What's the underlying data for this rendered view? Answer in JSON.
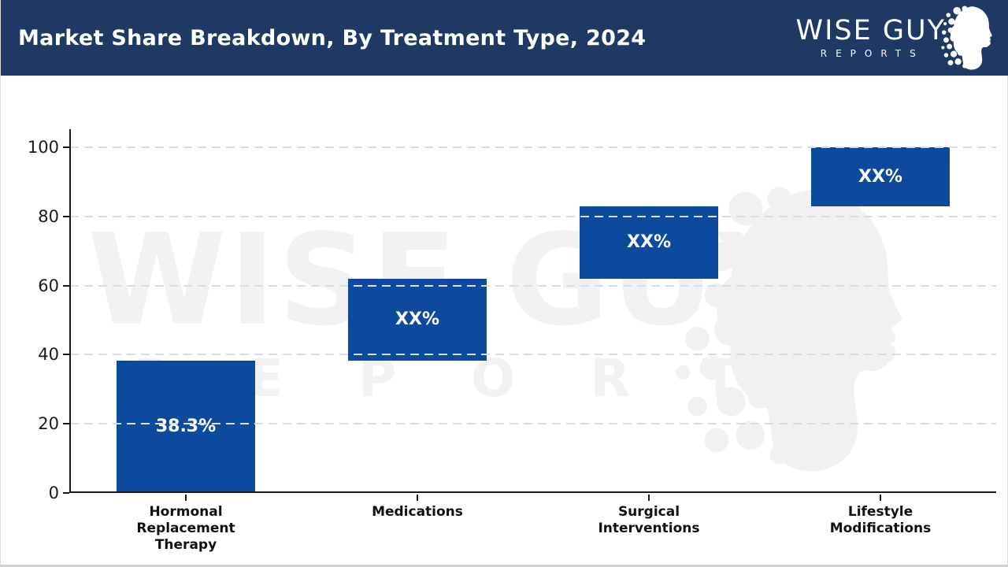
{
  "header": {
    "title": "Market Share Breakdown, By Treatment Type, 2024",
    "logo": {
      "line1": "WISE GUY",
      "line2": "REPORTS"
    }
  },
  "watermark": {
    "line1": "WISE GUY",
    "line2": "REPORTS"
  },
  "colors": {
    "header_bg": "#203864",
    "bar": "#0d4a9e",
    "bar_label": "#ffffff",
    "gridline": "#dcdcdf",
    "axis": "#1a1a1a",
    "watermark": "#f2f2f5"
  },
  "chart_data": {
    "type": "bar",
    "subtype": "waterfall",
    "title": "Market Share Breakdown, By Treatment Type, 2024",
    "categories": [
      "Hormonal Replacement Therapy",
      "Medications",
      "Surgical Interventions",
      "Lifestyle Modifications"
    ],
    "bars": [
      {
        "category": "Hormonal Replacement Therapy",
        "start": 0,
        "end": 38.3,
        "label": "38.3%"
      },
      {
        "category": "Medications",
        "start": 38.3,
        "end": 62,
        "label": "XX%"
      },
      {
        "category": "Surgical Interventions",
        "start": 62,
        "end": 83,
        "label": "XX%"
      },
      {
        "category": "Lifestyle Modifications",
        "start": 83,
        "end": 100,
        "label": "XX%"
      }
    ],
    "xlabel": "",
    "ylabel": "",
    "yticks": [
      0,
      20,
      40,
      60,
      80,
      100
    ],
    "ylim": [
      0,
      100
    ],
    "grid": "dashed-horizontal",
    "legend": "none"
  }
}
